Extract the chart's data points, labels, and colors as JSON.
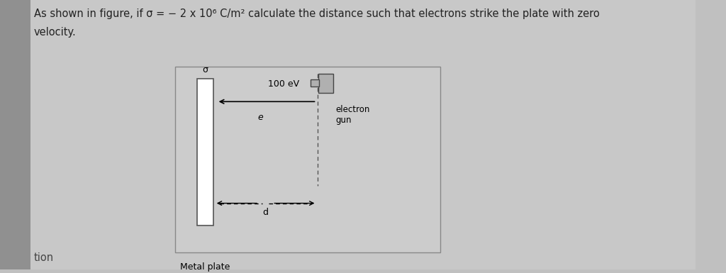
{
  "page_bg": "#c0c0c0",
  "diagram_bg": "#c8c8c8",
  "title_line1": "As shown in figure, if σ = − 2 x 10⁶ C/m² calculate the distance such that electrons strike the plate with zero",
  "title_line2": "velocity.",
  "metal_plate_label": "Metal plate",
  "sigma_label": "σ",
  "energy_label": "100 eV",
  "e_label": "e",
  "d_label": "d",
  "electron_gun_label": "electron\ngun",
  "bottom_label": "tion",
  "title_fontsize": 10.5,
  "label_fontsize": 9,
  "small_fontsize": 8.5
}
